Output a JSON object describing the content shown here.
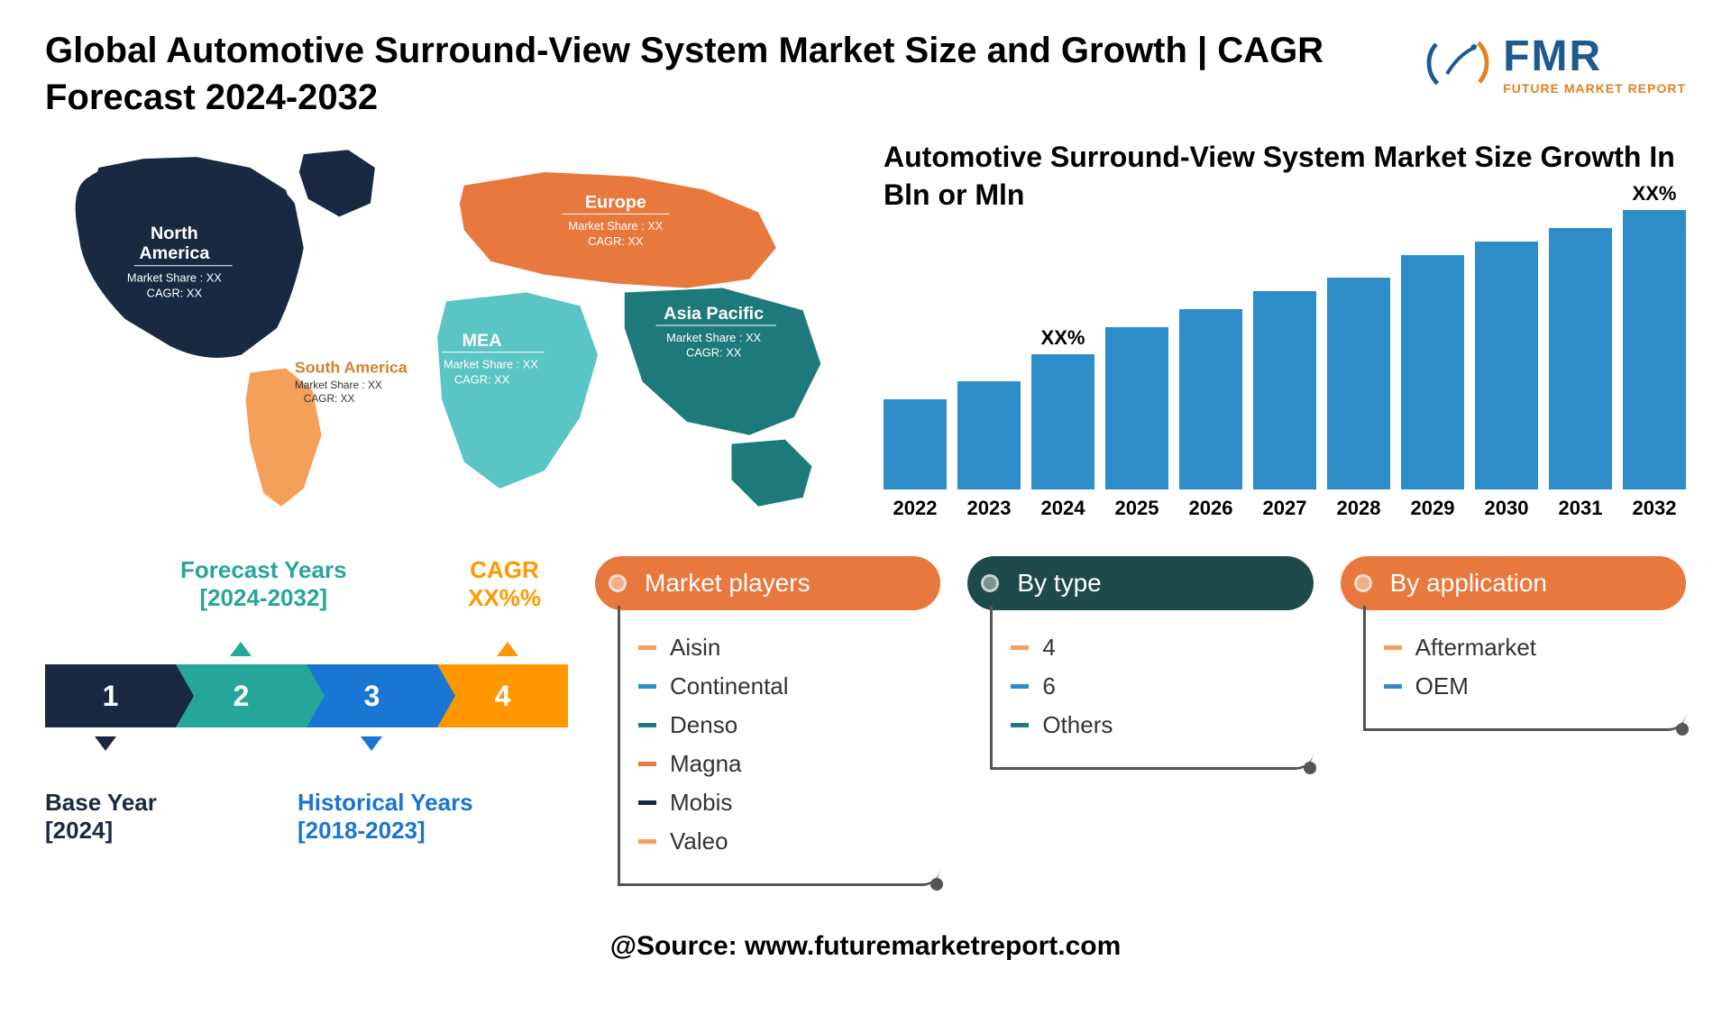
{
  "title": "Global Automotive Surround-View System Market Size and Growth | CAGR Forecast 2024-2032",
  "logo": {
    "main": "FMR",
    "sub": "FUTURE MARKET REPORT"
  },
  "map": {
    "regions": [
      {
        "name": "North America",
        "share": "Market Share : XX",
        "cagr": "CAGR: XX",
        "color": "#1a2942"
      },
      {
        "name": "South America",
        "share": "Market Share : XX",
        "cagr": "CAGR: XX",
        "color": "#f5a05a"
      },
      {
        "name": "Europe",
        "share": "Market Share : XX",
        "cagr": "CAGR: XX",
        "color": "#e8783e"
      },
      {
        "name": "MEA",
        "share": "Market Share : XX",
        "cagr": "CAGR: XX",
        "color": "#5bc4c4"
      },
      {
        "name": "Asia Pacific",
        "share": "Market Share : XX",
        "cagr": "CAGR: XX",
        "color": "#1e7a7a"
      }
    ]
  },
  "chart": {
    "title": "Automotive Surround-View System Market Size Growth In\nBln or Mln",
    "type": "bar",
    "bar_color": "#2e8dc8",
    "years": [
      "2022",
      "2023",
      "2024",
      "2025",
      "2026",
      "2027",
      "2028",
      "2029",
      "2030",
      "2031",
      "2032"
    ],
    "heights": [
      100,
      120,
      150,
      180,
      200,
      220,
      235,
      260,
      275,
      290,
      310
    ],
    "labels": {
      "2": "XX%",
      "10": "XX%"
    },
    "year_fontsize": 22,
    "label_fontsize": 22
  },
  "timeline": {
    "forecast": {
      "label": "Forecast Years",
      "range": "[2024-2032]",
      "color": "#26a69a"
    },
    "cagr": {
      "label": "CAGR",
      "value": "XX%%",
      "color": "#ff9800"
    },
    "base": {
      "label": "Base Year",
      "range": "[2024]",
      "color": "#1a2942"
    },
    "historical": {
      "label": "Historical Years",
      "range": "[2018-2023]",
      "color": "#1976d2"
    },
    "segments": [
      {
        "num": "1",
        "color": "#1a2942"
      },
      {
        "num": "2",
        "color": "#26a69a"
      },
      {
        "num": "3",
        "color": "#1976d2"
      },
      {
        "num": "4",
        "color": "#ff9800"
      }
    ]
  },
  "cards": [
    {
      "title": "Market players",
      "header_color": "#e8783e",
      "items": [
        {
          "label": "Aisin",
          "dash": "#f5a05a"
        },
        {
          "label": "Continental",
          "dash": "#2e8dc8"
        },
        {
          "label": "Denso",
          "dash": "#1e7a7a"
        },
        {
          "label": "Magna",
          "dash": "#e8783e"
        },
        {
          "label": "Mobis",
          "dash": "#1a2942"
        },
        {
          "label": "Valeo",
          "dash": "#f5a05a"
        }
      ]
    },
    {
      "title": "By type",
      "header_color": "#1e4a4a",
      "items": [
        {
          "label": "4",
          "dash": "#f5a05a"
        },
        {
          "label": "6",
          "dash": "#2e8dc8"
        },
        {
          "label": "Others",
          "dash": "#1e7a7a"
        }
      ]
    },
    {
      "title": "By application",
      "header_color": "#e8783e",
      "items": [
        {
          "label": "Aftermarket",
          "dash": "#f5a05a"
        },
        {
          "label": "OEM",
          "dash": "#2e8dc8"
        }
      ]
    }
  ],
  "source": "@Source: www.futuremarketreport.com"
}
